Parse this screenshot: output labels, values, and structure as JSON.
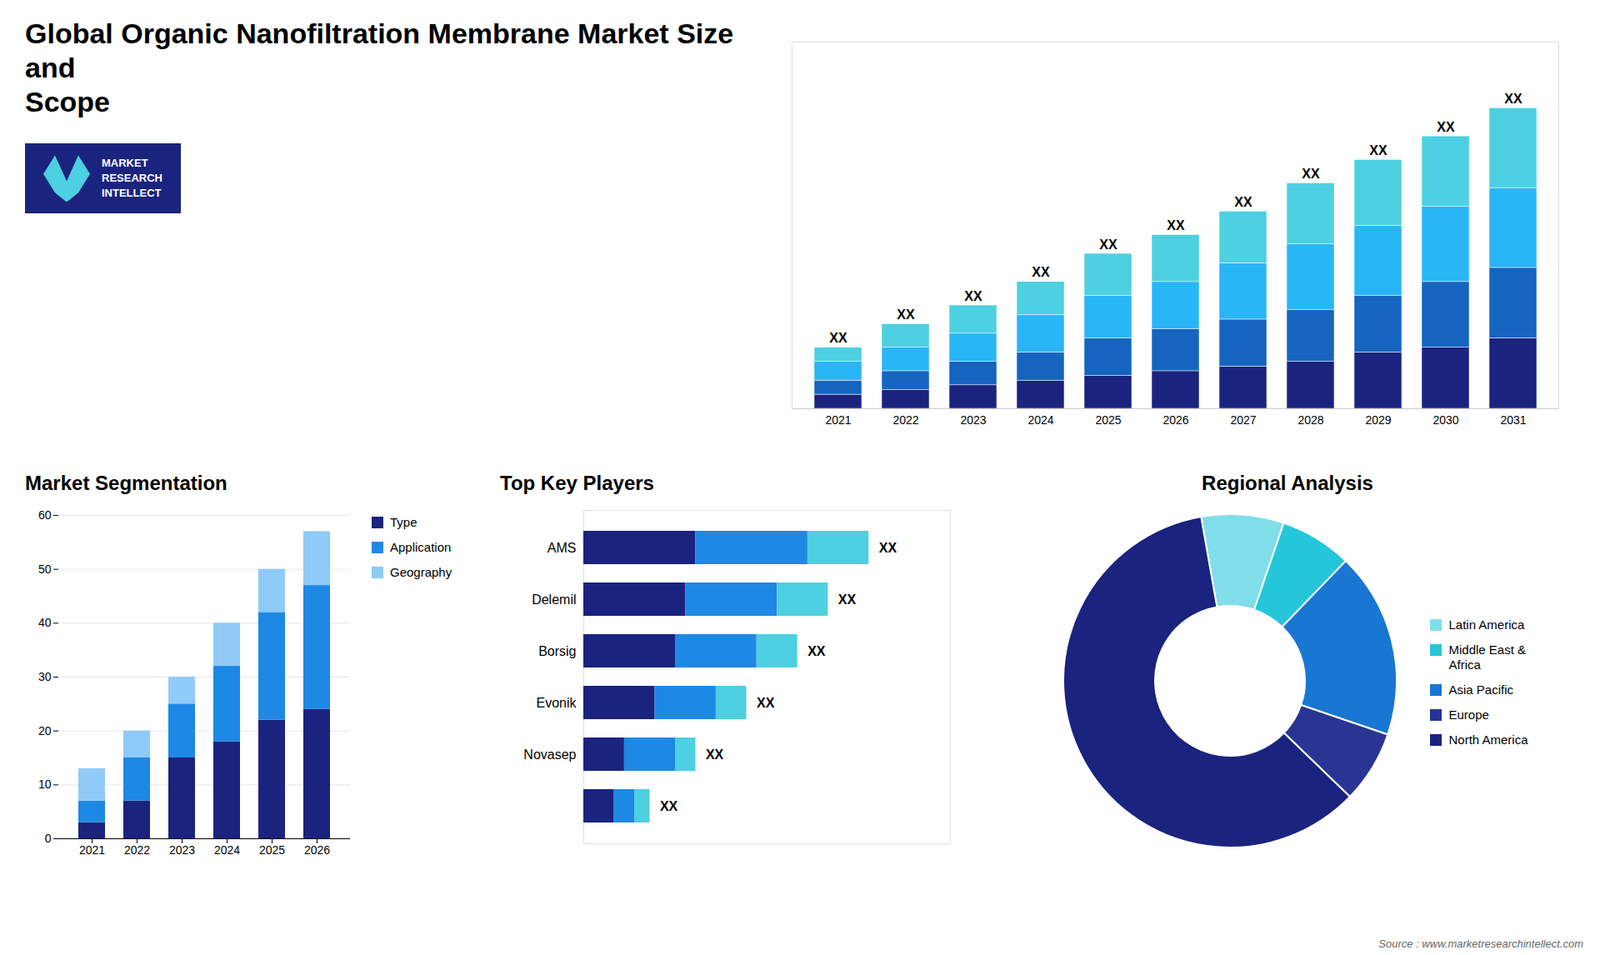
{
  "chart_data": [
    {
      "type": "bar",
      "title": "Global Organic Nanofiltration Membrane Market Size and\nScope",
      "stacked": true,
      "categories": [
        "2021",
        "2022",
        "2023",
        "2024",
        "2025",
        "2026",
        "2027",
        "2028",
        "2029",
        "2030",
        "2031"
      ],
      "series": [
        {
          "color": "#1a237e",
          "values": [
            3,
            4,
            5,
            6,
            7,
            8,
            9,
            10,
            12,
            13,
            15
          ]
        },
        {
          "color": "#1565c0",
          "values": [
            3,
            4,
            5,
            6,
            8,
            9,
            10,
            11,
            12,
            14,
            15
          ]
        },
        {
          "color": "#29b6f6",
          "values": [
            4,
            5,
            6,
            8,
            9,
            10,
            12,
            14,
            15,
            16,
            17
          ]
        },
        {
          "color": "#4dd0e1",
          "values": [
            3,
            5,
            6,
            7,
            9,
            10,
            11,
            13,
            14,
            15,
            17
          ]
        }
      ],
      "ylim": [
        0,
        78.08
      ],
      "yticks": [],
      "tick_labels": "x",
      "grid": false,
      "annotations": [
        {
          "category": "2021",
          "text": "XX"
        },
        {
          "category": "2022",
          "text": "XX"
        },
        {
          "category": "2023",
          "text": "XX"
        },
        {
          "category": "2024",
          "text": "XX"
        },
        {
          "category": "2025",
          "text": "XX"
        },
        {
          "category": "2026",
          "text": "XX"
        },
        {
          "category": "2027",
          "text": "XX"
        },
        {
          "category": "2028",
          "text": "XX"
        },
        {
          "category": "2029",
          "text": "XX"
        },
        {
          "category": "2030",
          "text": "XX"
        },
        {
          "category": "2031",
          "text": "XX"
        },
        {
          "text": "MARKET\nRESEARCH\nINTELLECT"
        }
      ]
    },
    {
      "type": "bar",
      "title": "Market Segmentation",
      "stacked": true,
      "categories": [
        "2021",
        "2022",
        "2023",
        "2024",
        "2025",
        "2026"
      ],
      "series": [
        {
          "name": "Type",
          "color": "#1a237e",
          "values": [
            3,
            7,
            15,
            18,
            22,
            24
          ]
        },
        {
          "name": "Application",
          "color": "#1e88e5",
          "values": [
            4,
            8,
            10,
            14,
            20,
            23
          ]
        },
        {
          "name": "Geography",
          "color": "#90caf9",
          "values": [
            6,
            5,
            5,
            8,
            8,
            10
          ]
        }
      ],
      "ylim": [
        0,
        60
      ],
      "yticks": [
        0,
        10,
        20,
        30,
        40,
        50,
        60
      ],
      "grid": true,
      "legend": "right"
    },
    {
      "type": "bar",
      "title": "Top Key Players",
      "orientation": "horizontal",
      "stacked": true,
      "categories": [
        "AMS",
        "Delemil",
        "Borsig",
        "Evonik",
        "Novasep",
        null
      ],
      "series": [
        {
          "color": "#1a237e",
          "values": [
            0.22,
            0.2,
            0.18,
            0.14,
            0.08,
            0.06
          ]
        },
        {
          "color": "#1e88e5",
          "values": [
            0.22,
            0.18,
            0.16,
            0.12,
            0.1,
            0.04
          ]
        },
        {
          "color": "#4dd0e1",
          "values": [
            0.12,
            0.1,
            0.08,
            0.06,
            0.04,
            0.03
          ]
        }
      ],
      "xlim": [
        0,
        0.72
      ],
      "xticks": [],
      "tick_labels": "y",
      "grid": false,
      "annotations": [
        {
          "category": 0,
          "text": "XX"
        },
        {
          "category": 1,
          "text": "XX"
        },
        {
          "category": 2,
          "text": "XX"
        },
        {
          "category": 3,
          "text": "XX"
        },
        {
          "category": 4,
          "text": "XX"
        },
        {
          "category": 5,
          "text": "XX"
        }
      ]
    },
    {
      "type": "pie",
      "title": "Regional Analysis",
      "categories": [
        "Latin America",
        "Middle East &\nAfrica",
        "Asia Pacific",
        "Europe",
        "North America"
      ],
      "values": [
        8,
        7,
        18,
        7,
        60
      ],
      "colors": [
        "#80deea",
        "#26c6da",
        "#1976d2",
        "#283593",
        "#1a237e"
      ],
      "legend": "right",
      "annotations": [
        {
          "text": "Source : www.marketresearchintellect.com"
        }
      ]
    }
  ]
}
